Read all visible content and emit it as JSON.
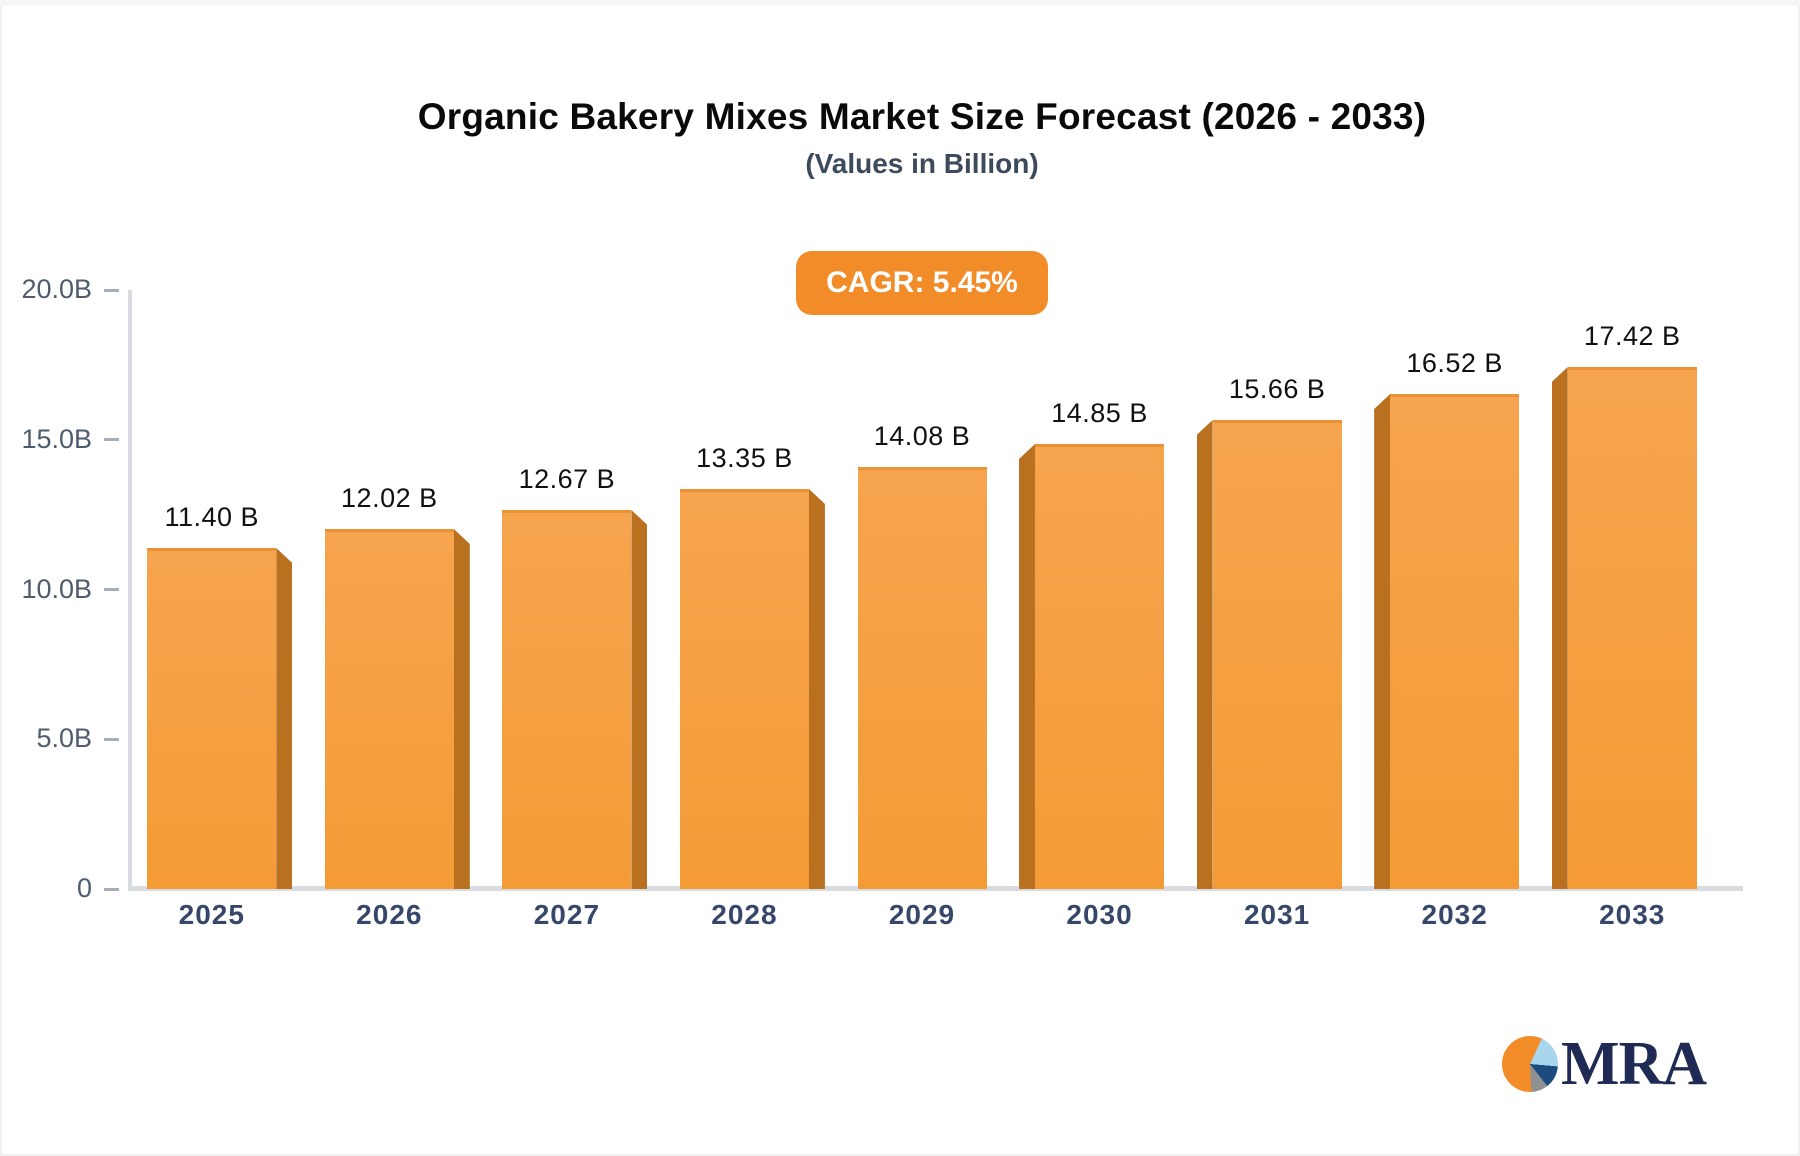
{
  "header": {
    "title": "Organic Bakery Mixes Market Size Forecast (2026 - 2033)",
    "subtitle": "(Values in Billion)",
    "badge_label": "CAGR: 5.45%"
  },
  "chart_data": {
    "type": "bar",
    "title": "Organic Bakery Mixes Market Size Forecast (2026 - 2033)",
    "subtitle": "(Values in Billion)",
    "annotation": "CAGR: 5.45%",
    "categories": [
      "2025",
      "2026",
      "2027",
      "2028",
      "2029",
      "2030",
      "2031",
      "2032",
      "2033"
    ],
    "values": [
      11.4,
      12.02,
      12.67,
      13.35,
      14.08,
      14.85,
      15.66,
      16.52,
      17.42
    ],
    "value_labels": [
      "11.40 B",
      "12.02 B",
      "12.67 B",
      "13.35 B",
      "14.08 B",
      "14.85 B",
      "15.66 B",
      "16.52 B",
      "17.42 B"
    ],
    "y_tick_labels": [
      "20.0B",
      "15.0B",
      "10.0B",
      "5.0B",
      "0"
    ],
    "ylim": [
      0,
      20
    ],
    "xlabel": "",
    "ylabel": "",
    "grid": false,
    "legend": false,
    "colors": {
      "bar_face_top": "#f6a44e",
      "bar_face_bottom": "#f49b36",
      "bar_side": "#b9701f",
      "bar_top_edge": "#ea9336",
      "badge_bg": "#f28c28",
      "badge_text": "#ffffff",
      "axis_line": "#d8dbe0",
      "tick": "#a5adb8",
      "y_label": "#4f5b6e",
      "x_label": "#36476a",
      "value_label": "#101010"
    }
  },
  "logo": {
    "text": "MRA",
    "text_color": "#1f2a55",
    "pie_orange": "#f28c28",
    "pie_light_blue": "#a9d5ee",
    "pie_navy": "#1d4b7f",
    "pie_gray": "#8e9092"
  }
}
